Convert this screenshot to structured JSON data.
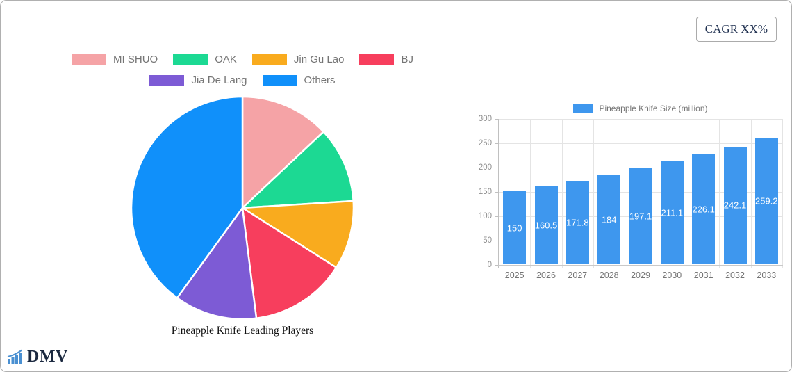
{
  "badge": {
    "label": "CAGR XX%"
  },
  "logo": {
    "text": "DMV",
    "icon": "growth-bars-icon",
    "icon_color": "#4a90d2",
    "text_color": "#1b2940"
  },
  "chart_data": [
    {
      "type": "pie",
      "title": "Pineapple Knife Leading Players",
      "legend_position": "top",
      "start_angle_deg": 0,
      "direction": "clockwise",
      "unit": "percent_share",
      "slices": [
        {
          "label": "MI SHUO",
          "value": 13,
          "color": "#F5A3A6"
        },
        {
          "label": "OAK",
          "value": 11,
          "color": "#1CD993"
        },
        {
          "label": "Jin Gu Lao",
          "value": 10,
          "color": "#F9AB1E"
        },
        {
          "label": "BJ",
          "value": 14,
          "color": "#F73E5D"
        },
        {
          "label": "Jia De Lang",
          "value": 12,
          "color": "#7D5BD5"
        },
        {
          "label": "Others",
          "value": 40,
          "color": "#1090FA"
        }
      ]
    },
    {
      "type": "bar",
      "legend": "Pineapple Knife Size (million)",
      "legend_position": "top",
      "categories": [
        "2025",
        "2026",
        "2027",
        "2028",
        "2029",
        "2030",
        "2031",
        "2032",
        "2033"
      ],
      "values": [
        150,
        160.5,
        171.8,
        184,
        197.1,
        211.1,
        226.1,
        242.1,
        259.2
      ],
      "bar_color": "#3E97EE",
      "value_label_color": "#ffffff",
      "xlabel": "",
      "ylabel": "",
      "ylim": [
        0,
        300
      ],
      "yticks": [
        0,
        50,
        100,
        150,
        200,
        250,
        300
      ],
      "grid": true
    }
  ]
}
